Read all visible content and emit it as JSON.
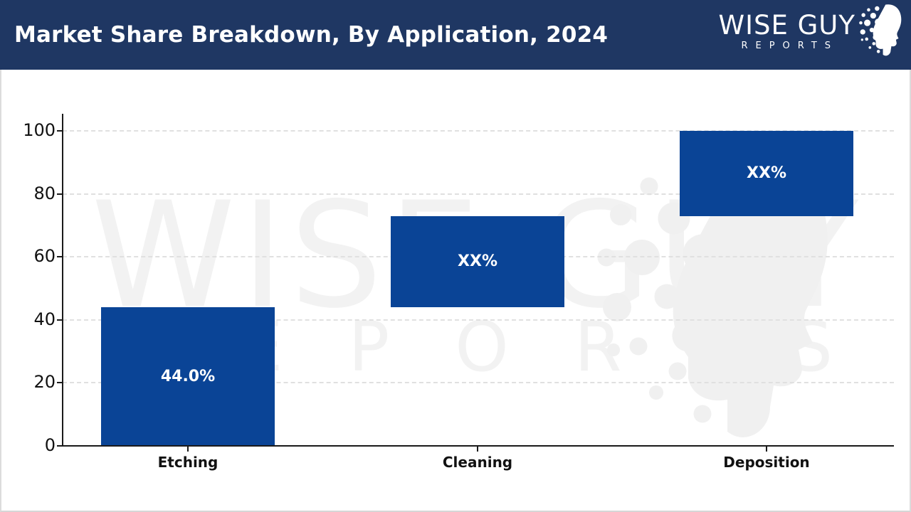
{
  "header": {
    "title": "Market Share Breakdown, By Application, 2024",
    "logo": {
      "name": "WISE GUY",
      "subtitle": "REPORTS",
      "face_icon": "dotted-head-profile-icon"
    }
  },
  "colors": {
    "header_bg": "#1f3763",
    "bar_blue": "#0a4496",
    "axis": "#1a1a1a",
    "grid": "#e0e0e0",
    "watermark": "#f2f2f2",
    "frame_border": "#dcdcdc",
    "bar_label_text": "#ffffff",
    "tick_text": "#111111"
  },
  "chart_data": {
    "type": "bar",
    "subtype": "waterfall",
    "title": "Market Share Breakdown, By Application, 2024",
    "categories": [
      "Etching",
      "Cleaning",
      "Deposition"
    ],
    "segments": [
      {
        "category": "Etching",
        "start": 0,
        "end": 44,
        "label": "44.0%"
      },
      {
        "category": "Cleaning",
        "start": 44,
        "end": 73,
        "label": "XX%"
      },
      {
        "category": "Deposition",
        "start": 73,
        "end": 100,
        "label": "XX%"
      }
    ],
    "ylabel": "",
    "xlabel": "",
    "ylim": [
      0,
      105
    ],
    "yticks": [
      0,
      20,
      40,
      60,
      80,
      100
    ],
    "grid": "horizontal-dashed",
    "legend": "none",
    "bar_value_labels_inside": true
  }
}
